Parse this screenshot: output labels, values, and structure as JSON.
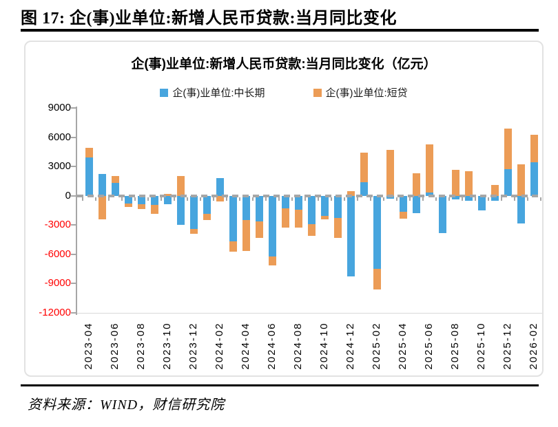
{
  "figure": {
    "caption": "图 17:  企(事)业单位:新增人民币贷款:当月同比变化",
    "source": "资料来源：WIND，财信研究院"
  },
  "chart_data": {
    "type": "bar",
    "stacked": true,
    "title": "企(事)业单位:新增人民币贷款:当月同比变化（亿元）",
    "unit": "亿元",
    "legend_position": "top",
    "grid": false,
    "zero_line_style": "dashed-gray",
    "ylim": [
      -12000,
      9000
    ],
    "y_ticks": [
      9000,
      6000,
      3000,
      0,
      -3000,
      -6000,
      -9000,
      -12000
    ],
    "negative_tick_color": "#ff0000",
    "categories": [
      "2023-04",
      "2023-05",
      "2023-06",
      "2023-07",
      "2023-08",
      "2023-09",
      "2023-10",
      "2023-11",
      "2023-12",
      "2024-01",
      "2024-02",
      "2024-03",
      "2024-04",
      "2024-05",
      "2024-06",
      "2024-07",
      "2024-08",
      "2024-09",
      "2024-10",
      "2024-11",
      "2024-12",
      "2025-01",
      "2025-02",
      "2025-03",
      "2025-04",
      "2025-05",
      "2025-06",
      "2025-07",
      "2025-08",
      "2025-09",
      "2025-10",
      "2025-11",
      "2025-12",
      "2026-01",
      "2026-02"
    ],
    "x_tick_labels": [
      "2023-04",
      "2023-06",
      "2023-08",
      "2023-10",
      "2023-12",
      "2024-02",
      "2024-04",
      "2024-06",
      "2024-08",
      "2024-10",
      "2024-12",
      "2025-02",
      "2025-04",
      "2025-06",
      "2025-08",
      "2025-10",
      "2025-12",
      "2026-02"
    ],
    "series": [
      {
        "name": "企(事)业单位:中长期",
        "color": "#47a5de",
        "values": [
          3900,
          2200,
          1300,
          -830,
          -880,
          -920,
          -870,
          -3000,
          -3400,
          -1860,
          1800,
          -4700,
          -2480,
          -2600,
          -6200,
          -1300,
          -1400,
          -2880,
          -2080,
          -2250,
          -8300,
          1400,
          -7500,
          -330,
          -1660,
          -1800,
          300,
          -3800,
          -350,
          -500,
          -1500,
          -500,
          2750,
          -2850,
          3400
        ]
      },
      {
        "name": "企(事)业单位:短贷",
        "color": "#ec9c56",
        "values": [
          1000,
          -2400,
          700,
          -350,
          -460,
          -940,
          200,
          2000,
          -500,
          -620,
          -600,
          -1050,
          -3170,
          -1700,
          -950,
          -1950,
          -1870,
          -1240,
          -330,
          -2060,
          500,
          3000,
          -2100,
          4700,
          -700,
          2330,
          5000,
          0,
          2650,
          2530,
          0,
          1100,
          4150,
          3200,
          2880
        ]
      }
    ]
  }
}
